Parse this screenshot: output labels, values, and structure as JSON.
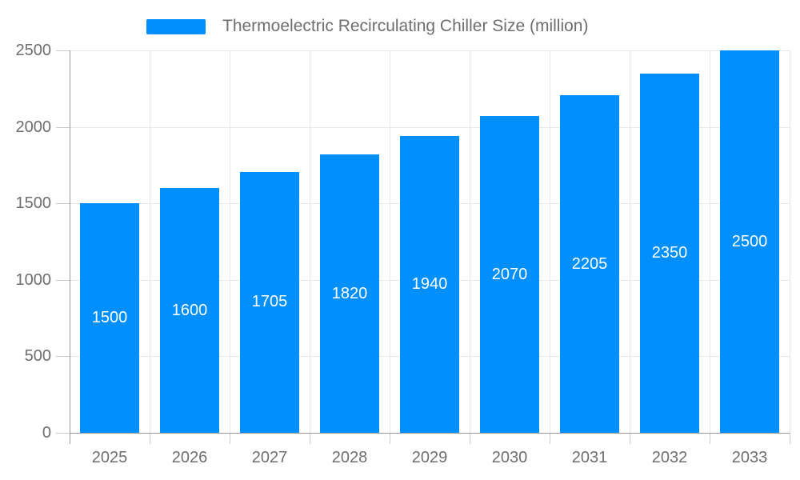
{
  "chart_data": {
    "type": "bar",
    "legend": {
      "label": "Thermoelectric Recirculating Chiller Size (million)",
      "position": "top"
    },
    "categories": [
      "2025",
      "2026",
      "2027",
      "2028",
      "2029",
      "2030",
      "2031",
      "2032",
      "2033"
    ],
    "values": [
      1500,
      1600,
      1705,
      1820,
      1940,
      2070,
      2205,
      2350,
      2500
    ],
    "yticks": [
      "0",
      "500",
      "1000",
      "1500",
      "2000",
      "2500"
    ],
    "ytick_step": 500,
    "ylim": [
      0,
      2500
    ],
    "xlabel": "",
    "ylabel": "",
    "grid": true,
    "value_labels_inside_bars": true,
    "colors": {
      "bar": "#008FFB",
      "grid": "#e7e7e7",
      "axis": "#989898",
      "tick": "#c9c9c9",
      "label": "#6e6e6e",
      "bar_label": "#ffffff",
      "background": "#ffffff"
    }
  }
}
